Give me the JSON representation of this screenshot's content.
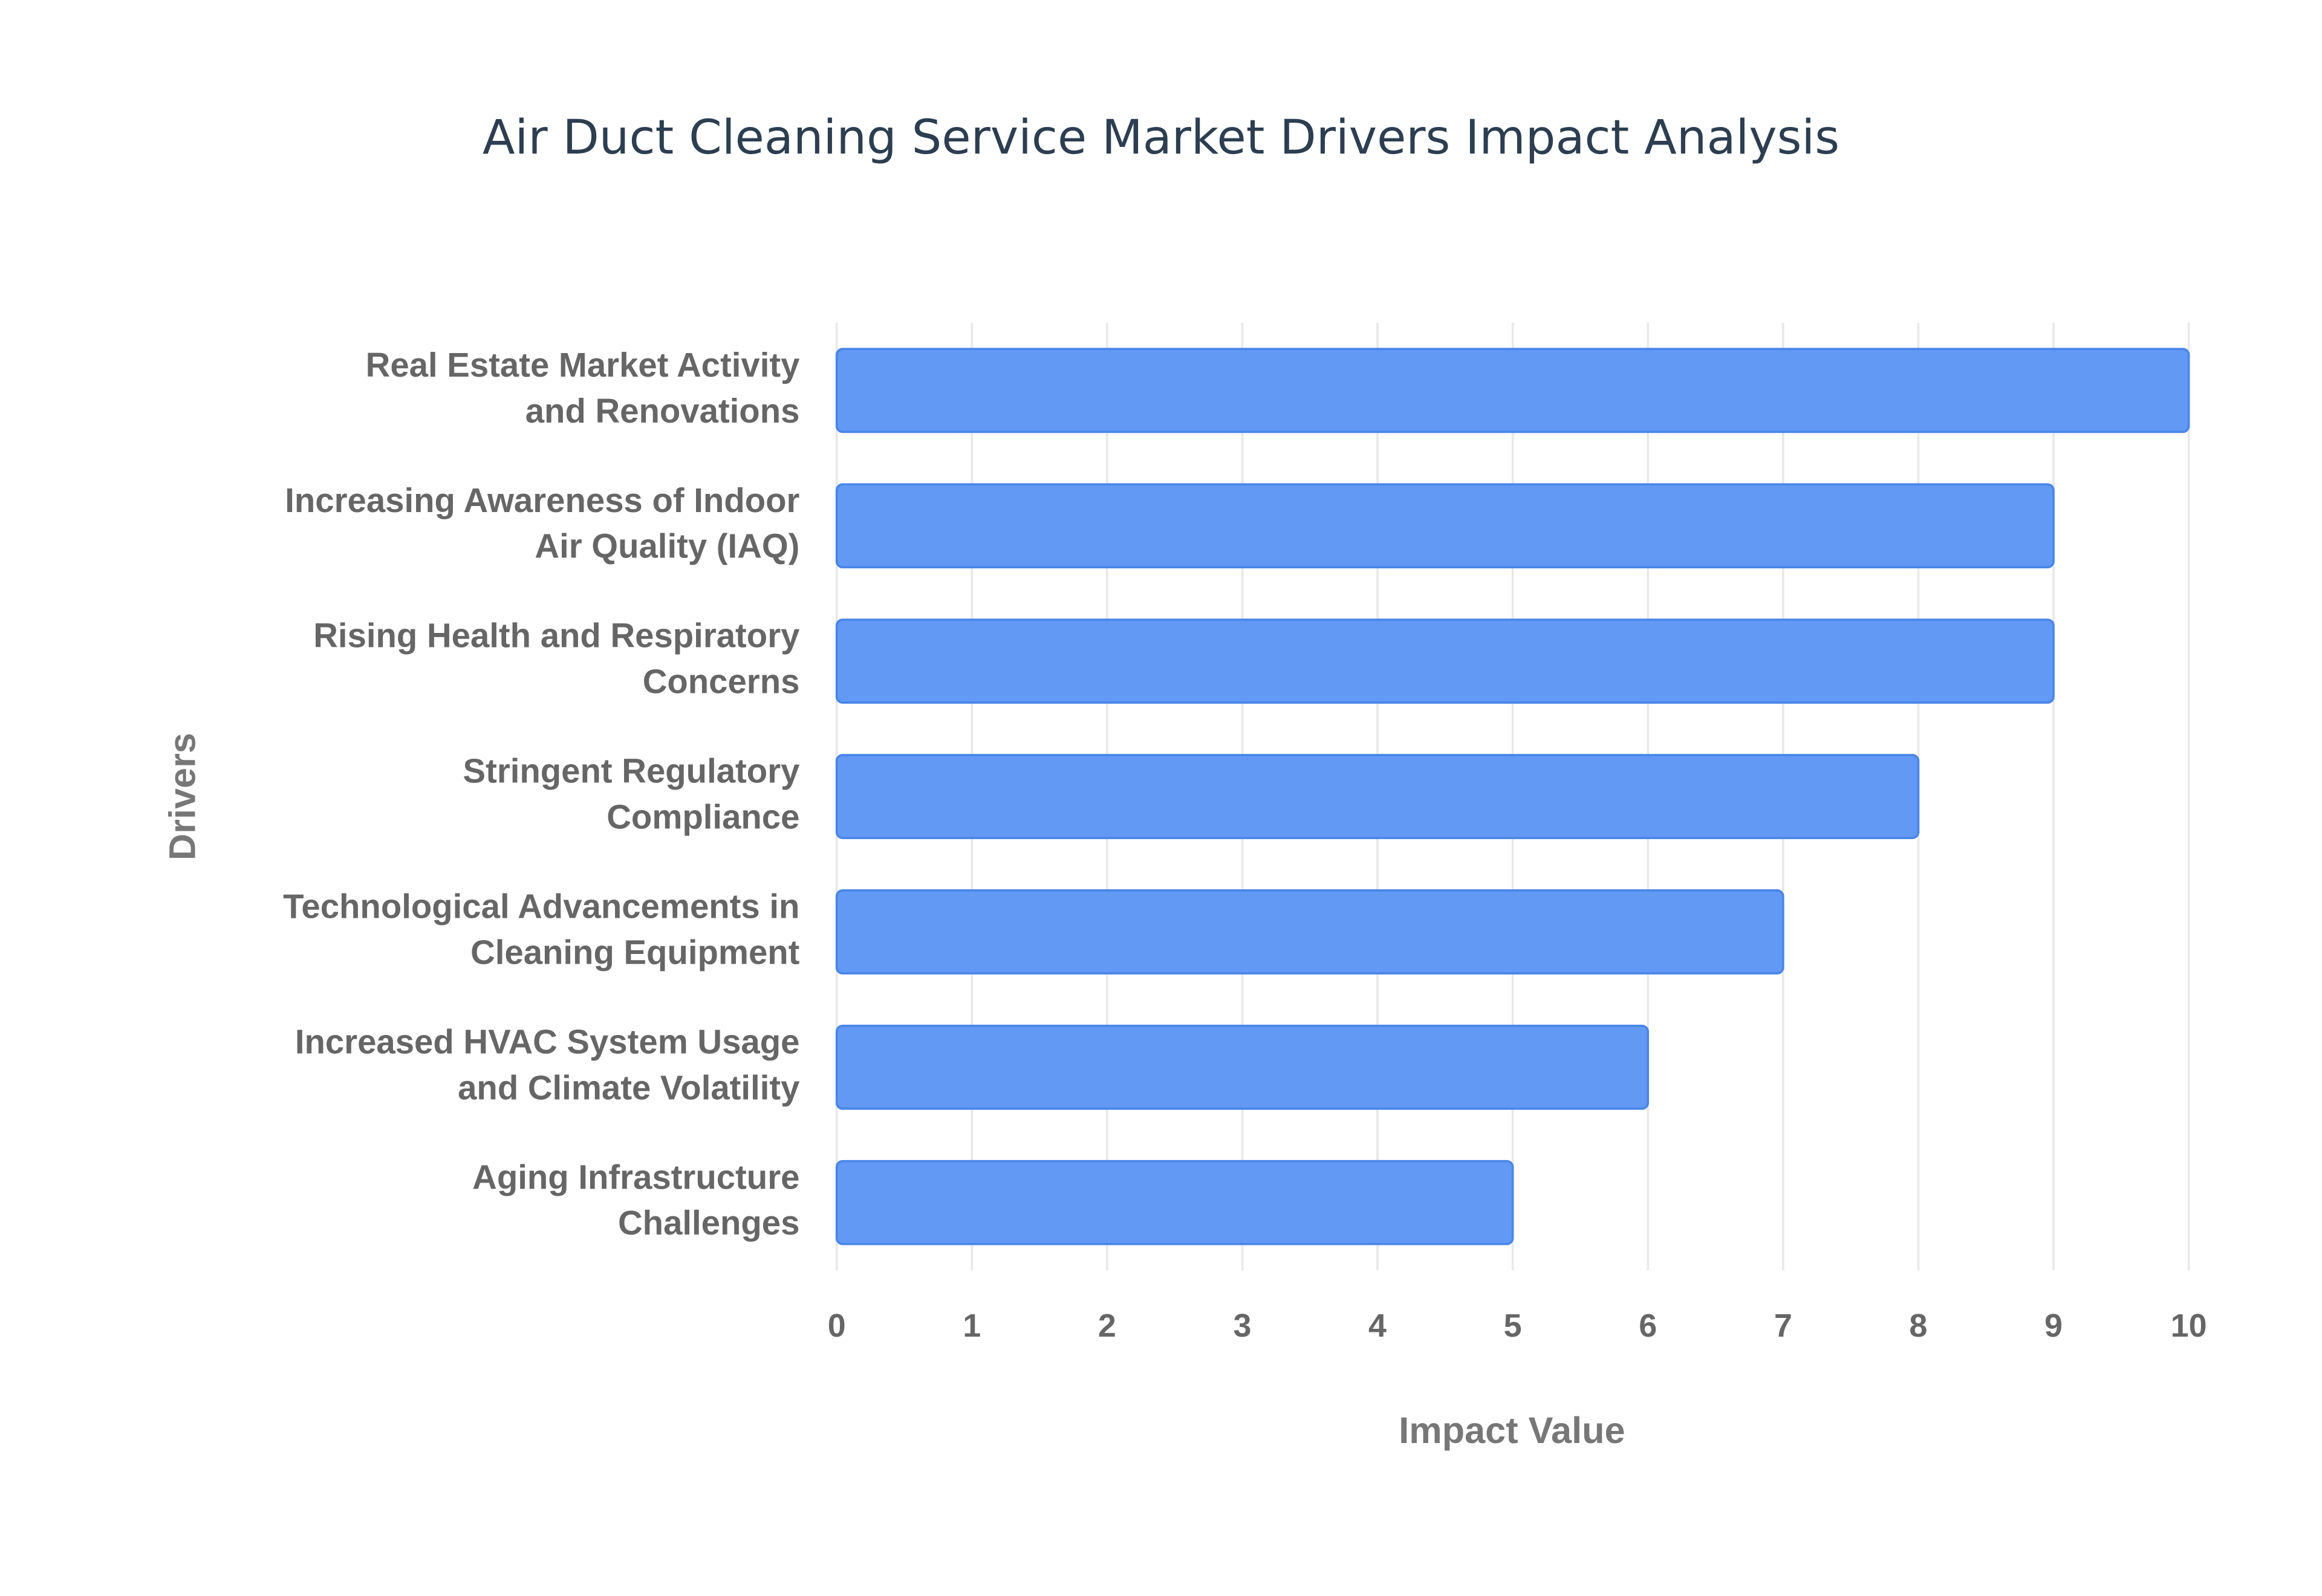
{
  "chart_data": {
    "type": "bar",
    "orientation": "horizontal",
    "title": "Air Duct Cleaning Service Market Drivers Impact Analysis",
    "x_label": "Impact Value",
    "y_label": "Drivers",
    "categories": [
      "Real Estate Market Activity and Renovations",
      "Increasing Awareness of Indoor Air Quality (IAQ)",
      "Rising Health and Respiratory Concerns",
      "Stringent Regulatory Compliance",
      "Technological Advancements in Cleaning Equipment",
      "Increased HVAC System Usage and Climate Volatility",
      "Aging Infrastructure Challenges"
    ],
    "values": [
      10,
      9,
      9,
      8,
      7,
      6,
      5
    ],
    "color": "#6199f5",
    "xlim": [
      0,
      10
    ],
    "xticks": [
      0,
      1,
      2,
      3,
      4,
      5,
      6,
      7,
      8,
      9,
      10
    ],
    "grid": true
  }
}
